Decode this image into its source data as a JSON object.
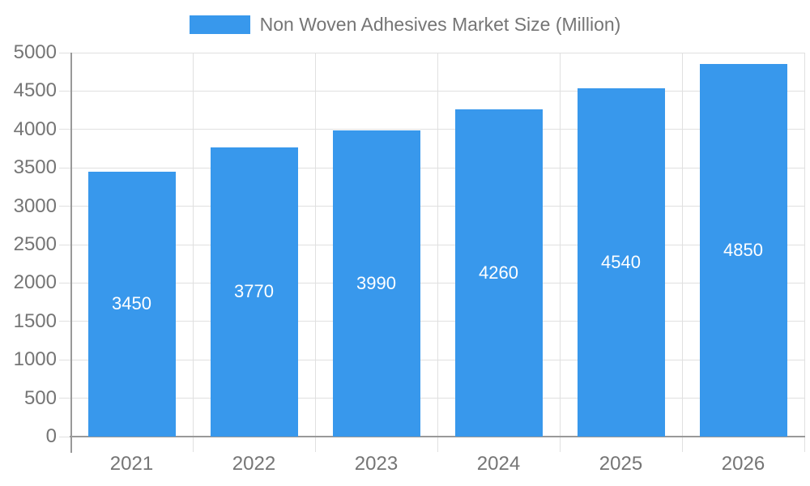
{
  "chart_data": {
    "type": "bar",
    "title": "Non Woven Adhesives Market Size (Million)",
    "legend": {
      "label": "Non Woven Adhesives Market Size (Million)",
      "position": "top"
    },
    "categories": [
      "2021",
      "2022",
      "2023",
      "2024",
      "2025",
      "2026"
    ],
    "values": [
      3450,
      3770,
      3990,
      4260,
      4540,
      4850
    ],
    "xlabel": "",
    "ylabel": "",
    "ylim": [
      0,
      5000
    ],
    "ytick_step": 500,
    "yticks": [
      0,
      500,
      1000,
      1500,
      2000,
      2500,
      3000,
      3500,
      4000,
      4500,
      5000
    ],
    "grid": true,
    "colors": {
      "bar": "#3898ec",
      "value_label": "#ffffff",
      "axis_text": "#757575",
      "grid_line": "#e0e0e0",
      "axis_line": "#999999",
      "background": "#ffffff"
    }
  }
}
